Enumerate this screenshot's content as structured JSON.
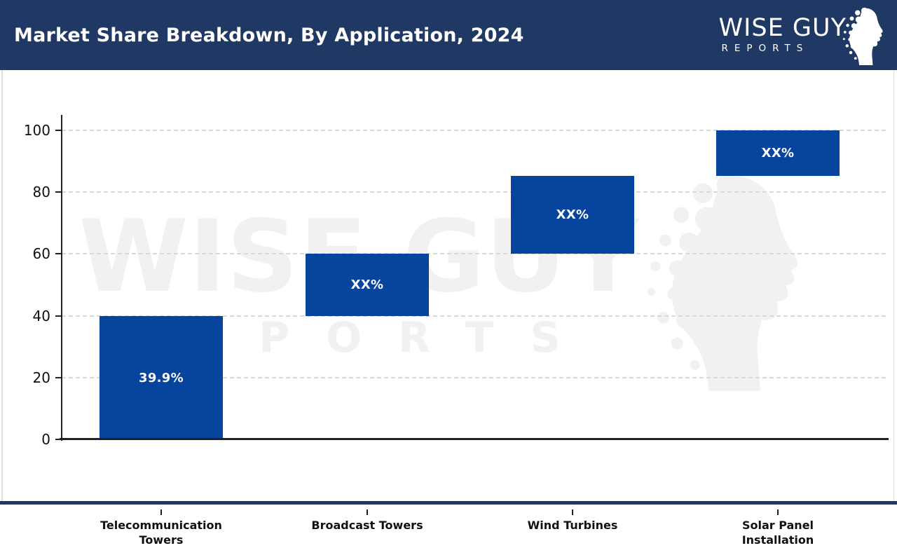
{
  "header": {
    "title": "Market Share Breakdown, By Application, 2024",
    "logo": {
      "line1": "WISE GUY",
      "line2": "REPORTS"
    }
  },
  "watermark": {
    "line1": "WISE GUY",
    "line2": "REPORTS"
  },
  "chart_data": {
    "type": "bar",
    "variant": "waterfall",
    "title": "Market Share Breakdown, By Application, 2024",
    "categories": [
      "Telecommunication\nTowers",
      "Broadcast Towers",
      "Wind Turbines",
      "Solar Panel\nInstallation"
    ],
    "segments": [
      {
        "category": "Telecommunication Towers",
        "start": 0,
        "end": 39.9,
        "label": "39.9%"
      },
      {
        "category": "Broadcast Towers",
        "start": 39.9,
        "end": 60,
        "label": "XX%"
      },
      {
        "category": "Wind Turbines",
        "start": 60,
        "end": 85.3,
        "label": "XX%"
      },
      {
        "category": "Solar Panel Installation",
        "start": 85.3,
        "end": 100,
        "label": "XX%"
      }
    ],
    "ylim": [
      0,
      100
    ],
    "yticks": [
      0,
      20,
      40,
      60,
      80,
      100
    ],
    "xlabel": "",
    "ylabel": "",
    "grid": "horizontal-dashed",
    "legend_position": "none",
    "colors": {
      "bar": "#07449e",
      "bar_label": "#ffffff",
      "grid": "#d9d9d9",
      "axis": "#212121",
      "header_bg": "#1f3864",
      "watermark": "#f1f1f3"
    }
  }
}
